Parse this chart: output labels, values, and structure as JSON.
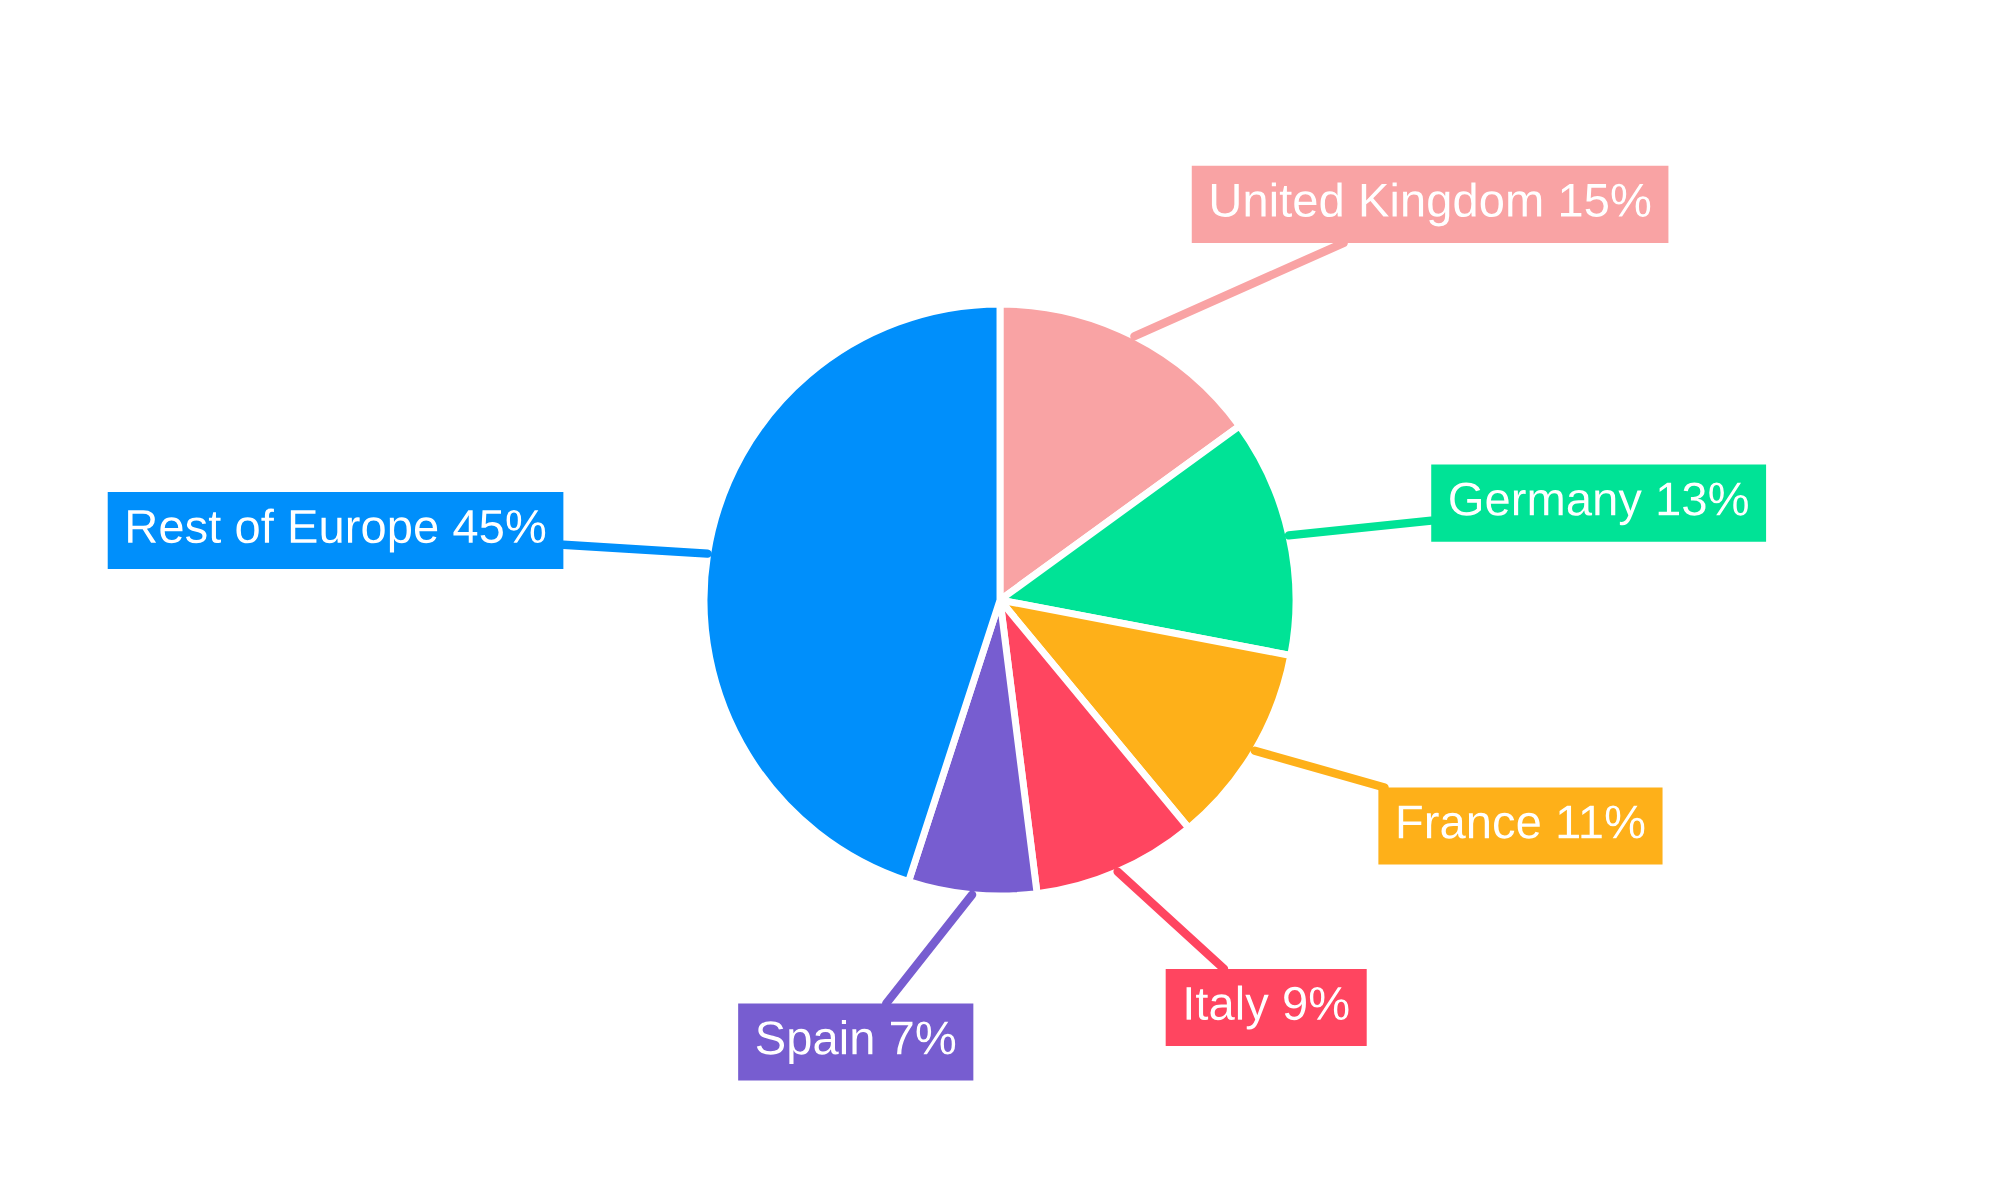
{
  "chart_data": {
    "type": "pie",
    "categories": [
      "United Kingdom",
      "Germany",
      "France",
      "Italy",
      "Spain",
      "Rest of Europe"
    ],
    "values": [
      15,
      13,
      11,
      9,
      7,
      45
    ],
    "value_labels": [
      "15%",
      "13%",
      "11%",
      "9%",
      "7%",
      "45%"
    ],
    "colors": [
      "#f9a3a4",
      "#00e396",
      "#feb019",
      "#ff4560",
      "#775dd0",
      "#008ffb"
    ],
    "legend": false
  }
}
